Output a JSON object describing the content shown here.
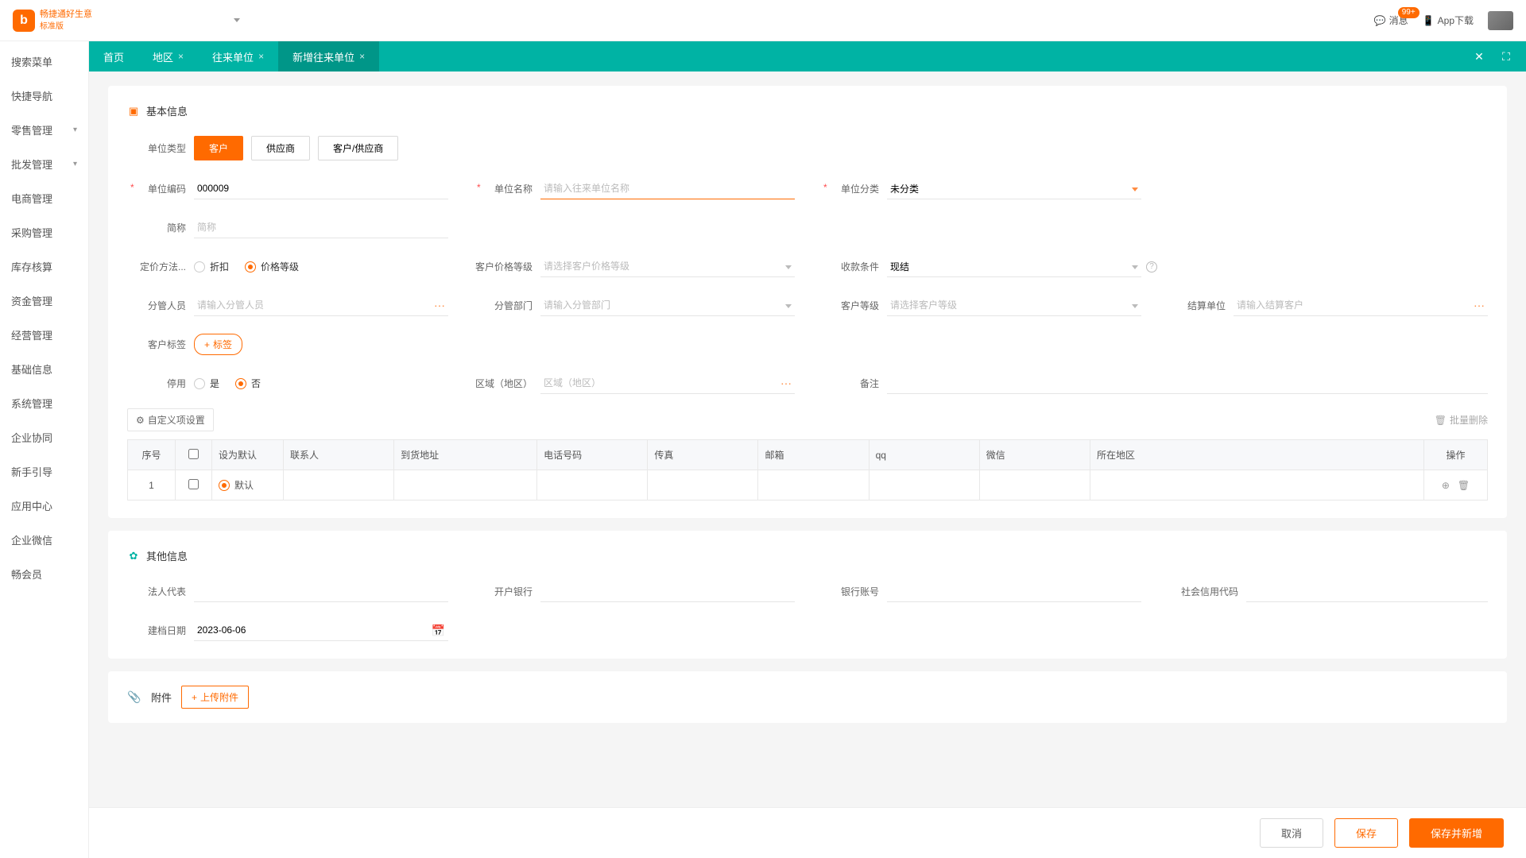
{
  "header": {
    "brand_top": "畅捷通好生意",
    "brand_sub": "标准版",
    "messages_label": "消息",
    "messages_badge": "99+",
    "download_label": "App下载"
  },
  "sidebar": {
    "items": [
      {
        "label": "搜索菜单",
        "caret": false
      },
      {
        "label": "快捷导航",
        "caret": false
      },
      {
        "label": "零售管理",
        "caret": true
      },
      {
        "label": "批发管理",
        "caret": true
      },
      {
        "label": "电商管理",
        "caret": false
      },
      {
        "label": "采购管理",
        "caret": false
      },
      {
        "label": "库存核算",
        "caret": false
      },
      {
        "label": "资金管理",
        "caret": false
      },
      {
        "label": "经营管理",
        "caret": false
      },
      {
        "label": "基础信息",
        "caret": false
      },
      {
        "label": "系统管理",
        "caret": false
      },
      {
        "label": "企业协同",
        "caret": false
      },
      {
        "label": "新手引导",
        "caret": false
      },
      {
        "label": "应用中心",
        "caret": false
      },
      {
        "label": "企业微信",
        "caret": false
      },
      {
        "label": "畅会员",
        "caret": false
      }
    ]
  },
  "tabs": {
    "items": [
      {
        "label": "首页",
        "closable": false,
        "active": false
      },
      {
        "label": "地区",
        "closable": true,
        "active": false
      },
      {
        "label": "往来单位",
        "closable": true,
        "active": false
      },
      {
        "label": "新增往来单位",
        "closable": true,
        "active": true
      }
    ]
  },
  "section_basic": {
    "title": "基本信息",
    "unit_type_label": "单位类型",
    "unit_type_options": {
      "a": "客户",
      "b": "供应商",
      "c": "客户/供应商"
    },
    "code_label": "单位编码",
    "code_value": "000009",
    "name_label": "单位名称",
    "name_placeholder": "请输入往来单位名称",
    "category_label": "单位分类",
    "category_value": "未分类",
    "short_label": "简称",
    "short_placeholder": "简称",
    "pricing_label": "定价方法...",
    "pricing_opt_discount": "折扣",
    "pricing_opt_level": "价格等级",
    "price_level_label": "客户价格等级",
    "price_level_placeholder": "请选择客户价格等级",
    "receipt_label": "收款条件",
    "receipt_value": "现结",
    "person_label": "分管人员",
    "person_placeholder": "请输入分管人员",
    "dept_label": "分管部门",
    "dept_placeholder": "请输入分管部门",
    "cust_level_label": "客户等级",
    "cust_level_placeholder": "请选择客户等级",
    "settle_label": "结算单位",
    "settle_placeholder": "请输入结算客户",
    "tag_label": "客户标签",
    "tag_btn": "标签",
    "disabled_label": "停用",
    "disabled_yes": "是",
    "disabled_no": "否",
    "region_label": "区域（地区）",
    "region_placeholder": "区域（地区）",
    "remark_label": "备注",
    "custom_setting": "自定义项设置",
    "batch_delete": "批量删除"
  },
  "table": {
    "headers": {
      "seq": "序号",
      "default": "设为默认",
      "contact": "联系人",
      "addr": "到货地址",
      "phone": "电话号码",
      "fax": "传真",
      "email": "邮箱",
      "qq": "qq",
      "wechat": "微信",
      "region": "所在地区",
      "op": "操作"
    },
    "row1_seq": "1",
    "row1_default": "默认"
  },
  "section_other": {
    "title": "其他信息",
    "legal_label": "法人代表",
    "bank_label": "开户银行",
    "account_label": "银行账号",
    "credit_label": "社会信用代码",
    "create_date_label": "建档日期",
    "create_date_value": "2023-06-06"
  },
  "attachments": {
    "label": "附件",
    "upload": "上传附件"
  },
  "footer": {
    "cancel": "取消",
    "save": "保存",
    "save_add": "保存并新增"
  }
}
